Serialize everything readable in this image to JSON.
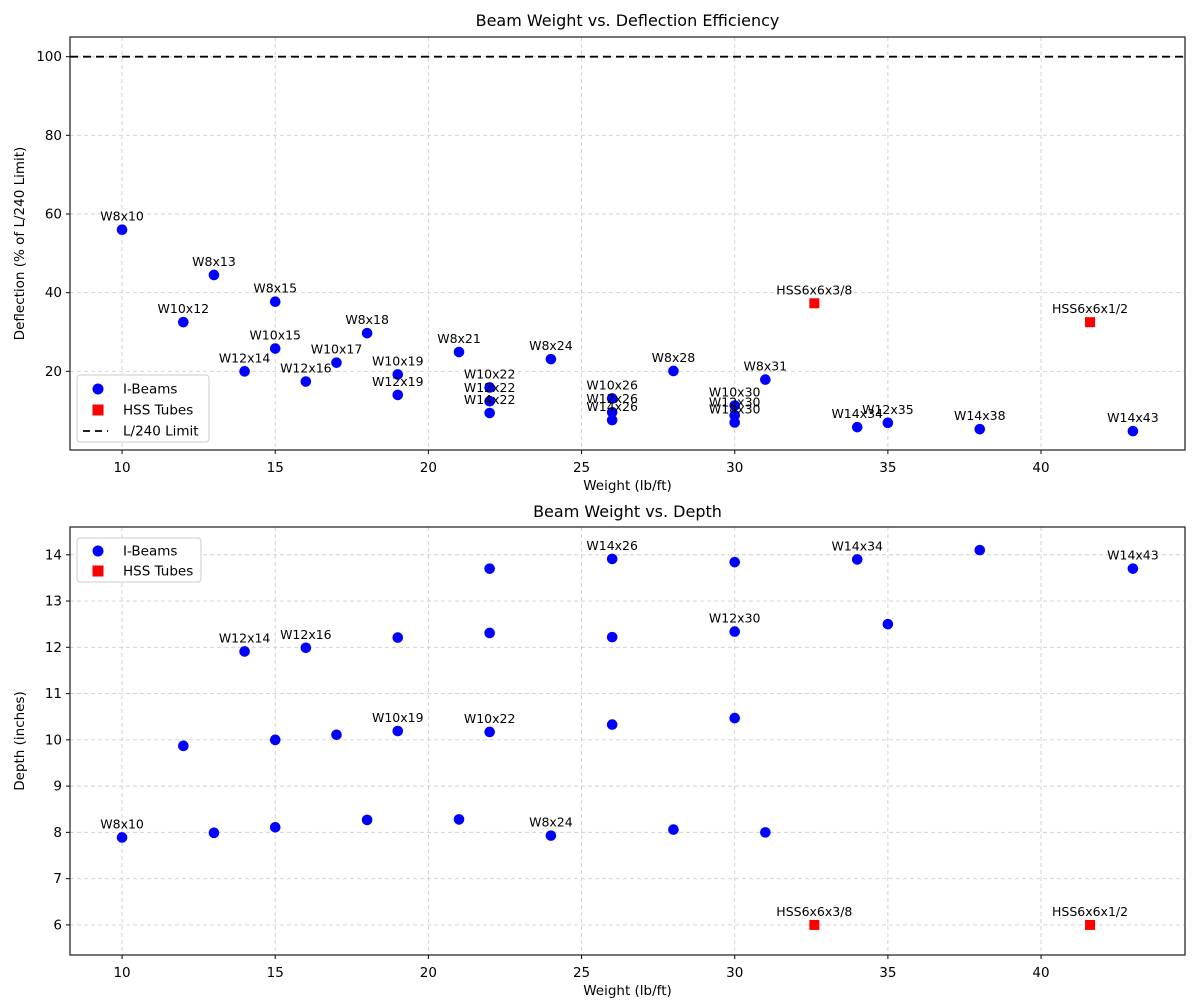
{
  "figure": {
    "background": "#ffffff"
  },
  "colors": {
    "ibeam": "#0000ff",
    "hss": "#ff0000",
    "reference": "#000000",
    "grid": "#cfcfcf"
  },
  "chart_data": [
    {
      "type": "scatter",
      "title": "Beam Weight vs. Deflection Efficiency",
      "xlabel": "Weight (lb/ft)",
      "ylabel": "Deflection (% of L/240 Limit)",
      "xlim": [
        8.3,
        44.7
      ],
      "ylim": [
        0,
        105
      ],
      "xticks": [
        10,
        15,
        20,
        25,
        30,
        35,
        40
      ],
      "yticks": [
        20,
        40,
        60,
        80,
        100
      ],
      "grid": true,
      "legend_position": "lower-left",
      "reference_line": {
        "y": 100,
        "label": "L/240 Limit",
        "color": "#000000",
        "style": "dashed"
      },
      "series": [
        {
          "name": "I-Beams",
          "marker": "circle",
          "color": "#0000ff",
          "points": [
            {
              "label": "W8x10",
              "x": 10,
              "y": 56.0,
              "annotate": true
            },
            {
              "label": "W10x12",
              "x": 12,
              "y": 32.5,
              "annotate": true
            },
            {
              "label": "W8x13",
              "x": 13,
              "y": 44.5,
              "annotate": true
            },
            {
              "label": "W12x14",
              "x": 14,
              "y": 20.0,
              "annotate": true
            },
            {
              "label": "W8x15",
              "x": 15,
              "y": 37.7,
              "annotate": true
            },
            {
              "label": "W10x15",
              "x": 15,
              "y": 25.8,
              "annotate": true
            },
            {
              "label": "W12x16",
              "x": 16,
              "y": 17.4,
              "annotate": true
            },
            {
              "label": "W10x17",
              "x": 17,
              "y": 22.2,
              "annotate": true
            },
            {
              "label": "W8x18",
              "x": 18,
              "y": 29.7,
              "annotate": true
            },
            {
              "label": "W10x19",
              "x": 19,
              "y": 19.2,
              "annotate": true
            },
            {
              "label": "W12x19",
              "x": 19,
              "y": 14.0,
              "annotate": true
            },
            {
              "label": "W8x21",
              "x": 21,
              "y": 24.9,
              "annotate": true
            },
            {
              "label": "W10x22",
              "x": 22,
              "y": 15.9,
              "annotate": true
            },
            {
              "label": "W12x22",
              "x": 22,
              "y": 12.4,
              "annotate": true
            },
            {
              "label": "W14x22",
              "x": 22,
              "y": 9.4,
              "annotate": true
            },
            {
              "label": "W8x24",
              "x": 24,
              "y": 23.1,
              "annotate": true
            },
            {
              "label": "W10x26",
              "x": 26,
              "y": 13.1,
              "annotate": true
            },
            {
              "label": "W12x26",
              "x": 26,
              "y": 9.6,
              "annotate": true
            },
            {
              "label": "W14x26",
              "x": 26,
              "y": 7.6,
              "annotate": true
            },
            {
              "label": "W8x28",
              "x": 28,
              "y": 20.1,
              "annotate": true
            },
            {
              "label": "W10x30",
              "x": 30,
              "y": 11.3,
              "annotate": true
            },
            {
              "label": "W12x30",
              "x": 30,
              "y": 8.8,
              "annotate": true
            },
            {
              "label": "W14x30",
              "x": 30,
              "y": 7.0,
              "annotate": true
            },
            {
              "label": "W8x31",
              "x": 31,
              "y": 17.9,
              "annotate": true
            },
            {
              "label": "W14x34",
              "x": 34,
              "y": 5.8,
              "annotate": true
            },
            {
              "label": "W12x35",
              "x": 35,
              "y": 6.9,
              "annotate": true
            },
            {
              "label": "W14x38",
              "x": 38,
              "y": 5.3,
              "annotate": true
            },
            {
              "label": "W14x43",
              "x": 43,
              "y": 4.8,
              "annotate": true
            }
          ]
        },
        {
          "name": "HSS Tubes",
          "marker": "square",
          "color": "#ff0000",
          "points": [
            {
              "label": "HSS6x6x3/8",
              "x": 32.6,
              "y": 37.3,
              "annotate": true
            },
            {
              "label": "HSS6x6x1/2",
              "x": 41.6,
              "y": 32.5,
              "annotate": true
            }
          ]
        }
      ]
    },
    {
      "type": "scatter",
      "title": "Beam Weight vs. Depth",
      "xlabel": "Weight (lb/ft)",
      "ylabel": "Depth (inches)",
      "xlim": [
        8.3,
        44.7
      ],
      "ylim": [
        5.35,
        14.6
      ],
      "xticks": [
        10,
        15,
        20,
        25,
        30,
        35,
        40
      ],
      "yticks": [
        6,
        7,
        8,
        9,
        10,
        11,
        12,
        13,
        14
      ],
      "grid": true,
      "legend_position": "upper-left",
      "series": [
        {
          "name": "I-Beams",
          "marker": "circle",
          "color": "#0000ff",
          "points": [
            {
              "label": "W8x10",
              "x": 10,
              "y": 7.89,
              "annotate": true
            },
            {
              "label": "W10x12",
              "x": 12,
              "y": 9.87,
              "annotate": false
            },
            {
              "label": "W8x13",
              "x": 13,
              "y": 7.99,
              "annotate": false
            },
            {
              "label": "W12x14",
              "x": 14,
              "y": 11.91,
              "annotate": true
            },
            {
              "label": "W8x15",
              "x": 15,
              "y": 8.11,
              "annotate": false
            },
            {
              "label": "W10x15",
              "x": 15,
              "y": 10.0,
              "annotate": false
            },
            {
              "label": "W12x16",
              "x": 16,
              "y": 11.99,
              "annotate": true
            },
            {
              "label": "W10x17",
              "x": 17,
              "y": 10.11,
              "annotate": false
            },
            {
              "label": "W8x18",
              "x": 18,
              "y": 8.27,
              "annotate": false
            },
            {
              "label": "W10x19",
              "x": 19,
              "y": 10.19,
              "annotate": true
            },
            {
              "label": "W12x19",
              "x": 19,
              "y": 12.21,
              "annotate": false
            },
            {
              "label": "W8x21",
              "x": 21,
              "y": 8.28,
              "annotate": false
            },
            {
              "label": "W10x22",
              "x": 22,
              "y": 10.17,
              "annotate": true
            },
            {
              "label": "W12x22",
              "x": 22,
              "y": 12.31,
              "annotate": false
            },
            {
              "label": "W14x22",
              "x": 22,
              "y": 13.7,
              "annotate": false
            },
            {
              "label": "W8x24",
              "x": 24,
              "y": 7.93,
              "annotate": true
            },
            {
              "label": "W10x26",
              "x": 26,
              "y": 10.33,
              "annotate": false
            },
            {
              "label": "W12x26",
              "x": 26,
              "y": 12.22,
              "annotate": false
            },
            {
              "label": "W14x26",
              "x": 26,
              "y": 13.91,
              "annotate": true
            },
            {
              "label": "W8x28",
              "x": 28,
              "y": 8.06,
              "annotate": false
            },
            {
              "label": "W10x30",
              "x": 30,
              "y": 10.47,
              "annotate": false
            },
            {
              "label": "W12x30",
              "x": 30,
              "y": 12.34,
              "annotate": true
            },
            {
              "label": "W14x30",
              "x": 30,
              "y": 13.84,
              "annotate": false
            },
            {
              "label": "W8x31",
              "x": 31,
              "y": 8.0,
              "annotate": false
            },
            {
              "label": "W14x34",
              "x": 34,
              "y": 13.9,
              "annotate": true
            },
            {
              "label": "W12x35",
              "x": 35,
              "y": 12.5,
              "annotate": false
            },
            {
              "label": "W14x38",
              "x": 38,
              "y": 14.1,
              "annotate": false
            },
            {
              "label": "W14x43",
              "x": 43,
              "y": 13.7,
              "annotate": true
            }
          ]
        },
        {
          "name": "HSS Tubes",
          "marker": "square",
          "color": "#ff0000",
          "points": [
            {
              "label": "HSS6x6x3/8",
              "x": 32.6,
              "y": 6.0,
              "annotate": true
            },
            {
              "label": "HSS6x6x1/2",
              "x": 41.6,
              "y": 6.0,
              "annotate": true
            }
          ]
        }
      ]
    }
  ]
}
